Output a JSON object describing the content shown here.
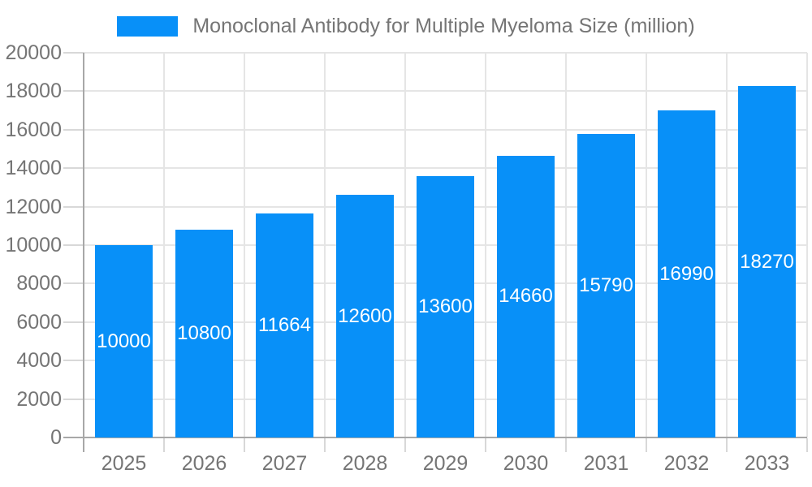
{
  "chart_data": {
    "type": "bar",
    "title": "",
    "legend_entries": [
      "Monoclonal Antibody for Multiple Myeloma Size (million)"
    ],
    "legend_position": "top",
    "categories": [
      "2025",
      "2026",
      "2027",
      "2028",
      "2029",
      "2030",
      "2031",
      "2032",
      "2033"
    ],
    "values": [
      10000,
      10800,
      11664,
      12600,
      13600,
      14660,
      15790,
      16990,
      18270
    ],
    "value_labels": [
      "10000",
      "10800",
      "11664",
      "12600",
      "13600",
      "14660",
      "15790",
      "16990",
      "18270"
    ],
    "xlabel": "",
    "ylabel": "",
    "ylim": [
      0,
      20000
    ],
    "ytick_step": 2000,
    "ytick_labels": [
      "0",
      "2000",
      "4000",
      "6000",
      "8000",
      "10000",
      "12000",
      "14000",
      "16000",
      "18000",
      "20000"
    ],
    "grid": true,
    "colors": {
      "bar": "#0890f8",
      "grid": "#e5e5e5",
      "tick": "#d8d8d8",
      "axis": "#a8a8a8",
      "tick_text": "#757575",
      "legend_text": "#757575",
      "value_text": "#ffffff",
      "background": "#ffffff"
    }
  }
}
